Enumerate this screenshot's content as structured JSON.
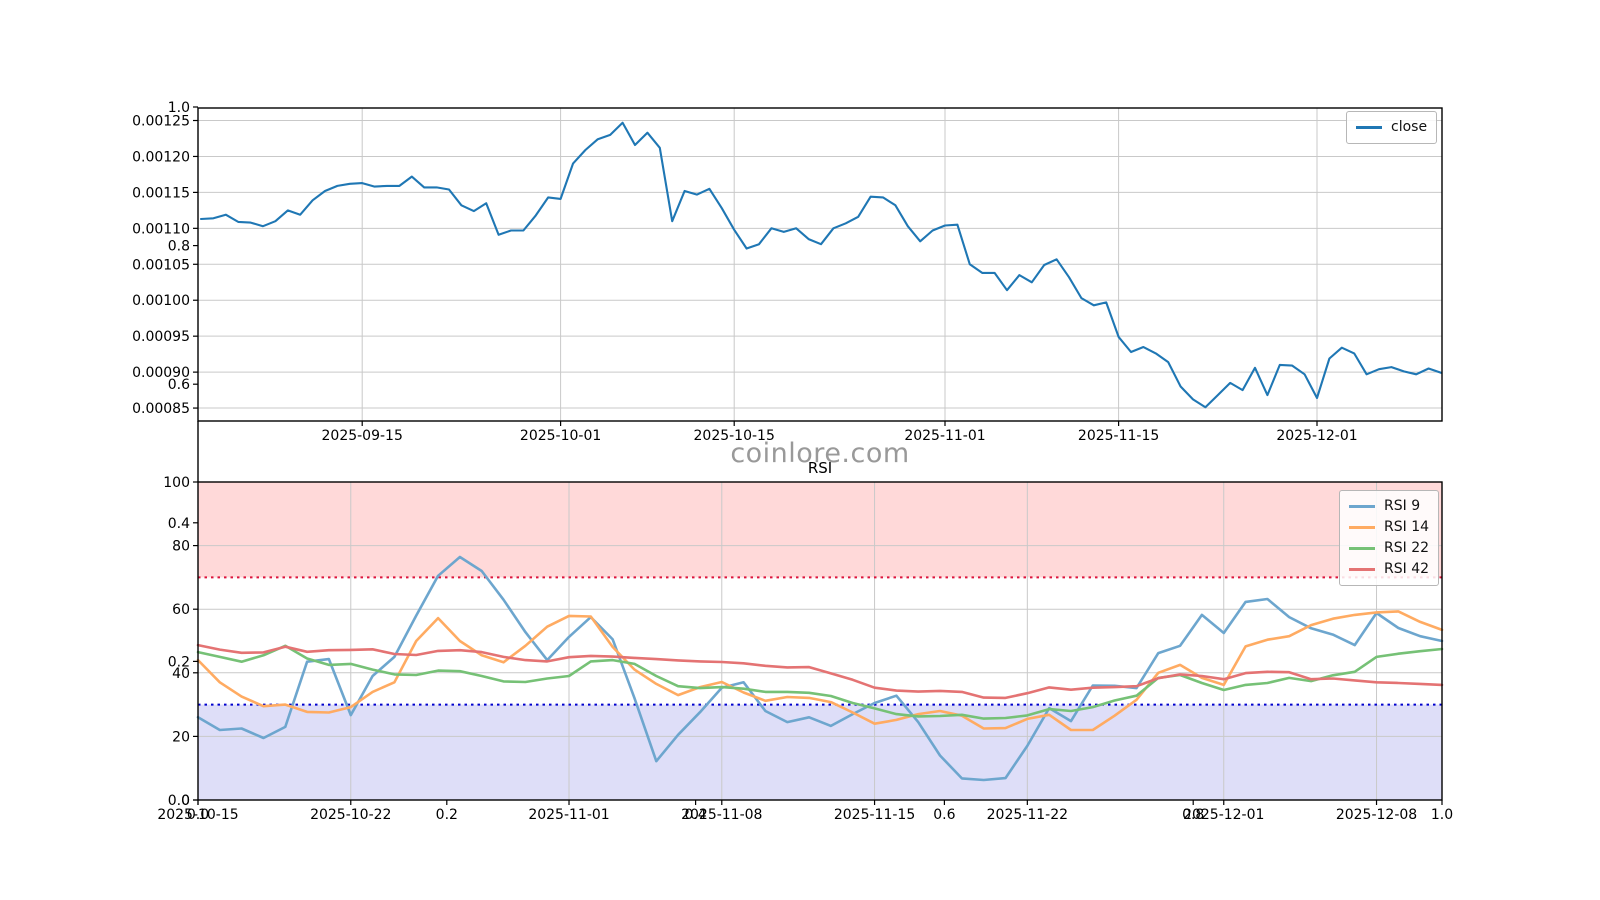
{
  "watermark": "coinlore.com",
  "overlay_axis": {
    "y_tick_labels": [
      "1.0",
      "0.8",
      "0.6",
      "0.4",
      "0.2",
      "0.0"
    ],
    "y_tick_values": [
      1.0,
      0.8,
      0.6,
      0.4,
      0.2,
      0.0
    ],
    "x_tick_labels": [
      "0.0",
      "0.2",
      "0.4",
      "0.6",
      "0.8",
      "1.0"
    ],
    "x_tick_values": [
      0.0,
      0.2,
      0.4,
      0.6,
      0.8,
      1.0
    ]
  },
  "chart_data": [
    {
      "type": "line",
      "title": "",
      "x_start_date": "2025-09-02",
      "x_freq": "daily",
      "x_tick_dates": [
        "2025-09-15",
        "2025-10-01",
        "2025-10-15",
        "2025-11-01",
        "2025-11-15",
        "2025-12-01"
      ],
      "y_ticks": [
        0.00125,
        0.0012,
        0.00115,
        0.0011,
        0.00105,
        0.001,
        0.00095,
        0.0009,
        0.00085
      ],
      "y_tick_labels": [
        "0.00125",
        "0.00120",
        "0.00115",
        "0.00110",
        "0.00105",
        "0.00100",
        "0.00095",
        "0.00090",
        "0.00085"
      ],
      "ylim": [
        0.000832,
        0.0012674
      ],
      "grid": true,
      "legend_position": "upper right",
      "series": [
        {
          "name": "close",
          "color": "#1f77b4",
          "values": [
            0.001113,
            0.001114,
            0.001119,
            0.001109,
            0.001108,
            0.001103,
            0.00111,
            0.001125,
            0.001119,
            0.001139,
            0.001152,
            0.001159,
            0.001162,
            0.001163,
            0.001158,
            0.001159,
            0.001159,
            0.001172,
            0.001157,
            0.001157,
            0.001154,
            0.001132,
            0.001124,
            0.001135,
            0.001091,
            0.001097,
            0.001097,
            0.001118,
            0.001143,
            0.001141,
            0.00119,
            0.001209,
            0.001224,
            0.00123,
            0.001247,
            0.001216,
            0.001233,
            0.001212,
            0.00111,
            0.001152,
            0.001147,
            0.001155,
            0.001128,
            0.001098,
            0.001072,
            0.001078,
            0.0011,
            0.001095,
            0.0011,
            0.001085,
            0.001078,
            0.0011,
            0.001107,
            0.001116,
            0.001144,
            0.001143,
            0.001132,
            0.001103,
            0.001082,
            0.001097,
            0.001104,
            0.001105,
            0.00105,
            0.001038,
            0.001038,
            0.001014,
            0.001035,
            0.001025,
            0.001049,
            0.001057,
            0.001032,
            0.001003,
            0.000993,
            0.000997,
            0.000949,
            0.000928,
            0.000935,
            0.000926,
            0.000914,
            0.00088,
            0.000862,
            0.000851,
            0.000868,
            0.000885,
            0.000875,
            0.000906,
            0.000868,
            0.00091,
            0.000909,
            0.000897,
            0.000864,
            0.000919,
            0.000934,
            0.000926,
            0.000897,
            0.000904,
            0.000907,
            0.000901,
            0.000897,
            0.000905,
            0.000899
          ]
        }
      ]
    },
    {
      "type": "line",
      "title": "RSI",
      "x_start_date": "2025-10-15",
      "x_freq": "daily",
      "x_tick_dates": [
        "2025-10-15",
        "2025-10-22",
        "2025-11-01",
        "2025-11-08",
        "2025-11-15",
        "2025-11-22",
        "2025-12-01",
        "2025-12-08"
      ],
      "y_ticks": [
        100,
        80,
        60,
        40,
        20,
        0
      ],
      "y_tick_labels": [
        "100",
        "80",
        "60",
        "40",
        "20",
        "0"
      ],
      "ylim": [
        0,
        100
      ],
      "grid": true,
      "legend_position": "upper right",
      "overbought_band": {
        "range": [
          70,
          100
        ],
        "fill": "#ffd9d9",
        "line_y": 70,
        "line_color": "#dc143c",
        "line_style": "dotted"
      },
      "oversold_band": {
        "range": [
          0,
          30
        ],
        "fill": "#dedef8",
        "line_y": 30,
        "line_color": "#0000cd",
        "line_style": "dotted"
      },
      "series": [
        {
          "name": "RSI 9",
          "color": "#6da6ce",
          "values": [
            26,
            22,
            22.5,
            19.5,
            23,
            43.5,
            44.3,
            26.7,
            39,
            45,
            58,
            70.5,
            76.4,
            72,
            63,
            52.8,
            44,
            51.3,
            57.5,
            50.5,
            32,
            12.2,
            20.5,
            27.6,
            35.3,
            37,
            28,
            24.5,
            26,
            23.3,
            27,
            30.5,
            32.8,
            24.5,
            14,
            6.8,
            6.3,
            6.9,
            17,
            28.9,
            24.8,
            36,
            35.9,
            35.2,
            46.2,
            48.5,
            58.2,
            52.5,
            62.3,
            63.2,
            57.5,
            54,
            52,
            48.7,
            58.8,
            54.1,
            51.5,
            50
          ]
        },
        {
          "name": "RSI 14",
          "color": "#ffab62",
          "values": [
            44,
            37,
            32.5,
            29.5,
            30,
            27.7,
            27.5,
            29.2,
            34,
            37,
            50,
            57.2,
            50,
            45.5,
            43.3,
            48.5,
            54.5,
            57.9,
            57.7,
            48.1,
            41,
            36.5,
            33,
            35.5,
            37.1,
            33.8,
            31.2,
            32.4,
            32.1,
            30.8,
            27.5,
            24,
            25.2,
            27,
            28,
            26.5,
            22.5,
            22.6,
            25.5,
            26.8,
            22,
            22,
            26.5,
            31.5,
            40,
            42.5,
            38.4,
            36.2,
            48.3,
            50.4,
            51.5,
            55,
            57,
            58.2,
            59,
            59.3,
            56,
            53.5
          ]
        },
        {
          "name": "RSI 22",
          "color": "#76c176",
          "values": [
            46.5,
            45,
            43.5,
            45.5,
            48.5,
            44.5,
            42.5,
            42.8,
            41,
            39.5,
            39.3,
            40.7,
            40.5,
            39,
            37.3,
            37.1,
            38.2,
            39,
            43.6,
            44,
            42.8,
            39,
            35.8,
            35.2,
            35.5,
            35,
            34,
            34,
            33.7,
            32.7,
            30.5,
            28.8,
            27,
            26.3,
            26.4,
            26.8,
            25.6,
            25.8,
            26.6,
            28.6,
            28,
            29.2,
            31.3,
            32.8,
            38.4,
            39.3,
            36.8,
            34.6,
            36.2,
            36.8,
            38.4,
            37.4,
            39.2,
            40.3,
            45,
            46,
            46.8,
            47.5
          ]
        },
        {
          "name": "RSI 42",
          "color": "#e47373",
          "values": [
            48.7,
            47.3,
            46.3,
            46.4,
            48.2,
            46.6,
            47.1,
            47.2,
            47.4,
            45.9,
            45.6,
            46.9,
            47.1,
            46.5,
            45,
            44,
            43.6,
            44.9,
            45.3,
            45.1,
            44.7,
            44.3,
            43.9,
            43.6,
            43.4,
            43,
            42.2,
            41.7,
            41.8,
            39.8,
            37.8,
            35.3,
            34.4,
            34.1,
            34.3,
            34,
            32.2,
            32.1,
            33.6,
            35.4,
            34.7,
            35.3,
            35.5,
            35.8,
            38.3,
            39.5,
            39,
            38,
            39.9,
            40.3,
            40.2,
            38,
            38.2,
            37.6,
            37,
            36.8,
            36.5,
            36.2
          ]
        }
      ]
    }
  ]
}
